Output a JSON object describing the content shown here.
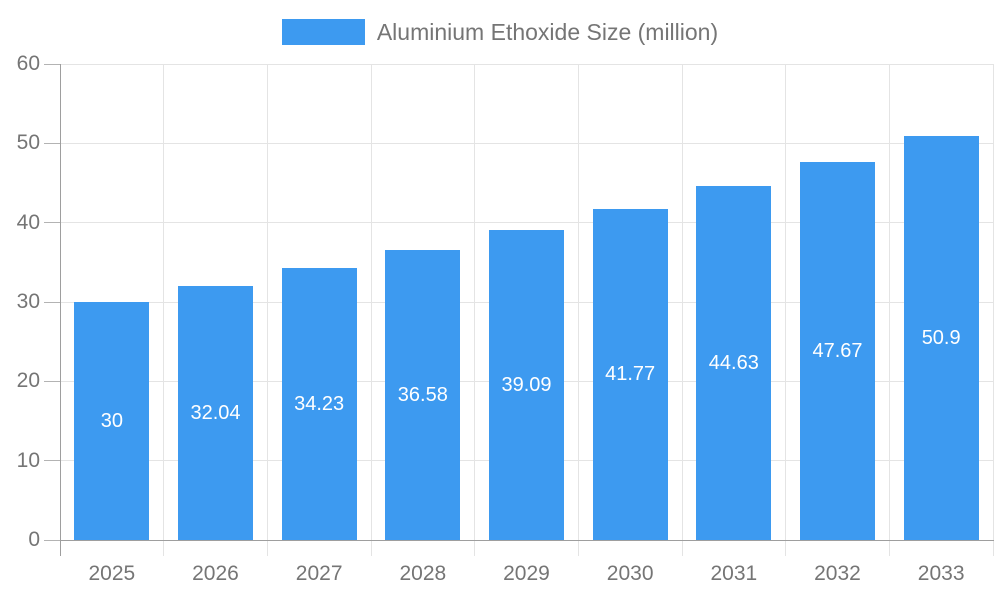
{
  "chart_data": {
    "type": "bar",
    "legend": "Aluminium Ethoxide Size (million)",
    "categories": [
      "2025",
      "2026",
      "2027",
      "2028",
      "2029",
      "2030",
      "2031",
      "2032",
      "2033"
    ],
    "values": [
      30,
      32.04,
      34.23,
      36.58,
      39.09,
      41.77,
      44.63,
      47.67,
      50.9
    ],
    "value_labels": [
      "30",
      "32.04",
      "34.23",
      "36.58",
      "39.09",
      "41.77",
      "44.63",
      "47.67",
      "50.9"
    ],
    "ylim": [
      0,
      60
    ],
    "yticks": [
      "0",
      "10",
      "20",
      "30",
      "40",
      "50",
      "60"
    ],
    "grid": true,
    "legend_position": "top-center",
    "value_label_position": "inside-center",
    "colors": {
      "bar": "#3d9af0",
      "axis_line": "#9e9e9e",
      "outer_tick": "#b3b3b3",
      "gridline": "#e4e4e4",
      "tick_label_text": "#757575",
      "legend_text": "#757575",
      "bar_label_text": "#ffffff",
      "background": "#ffffff"
    }
  }
}
